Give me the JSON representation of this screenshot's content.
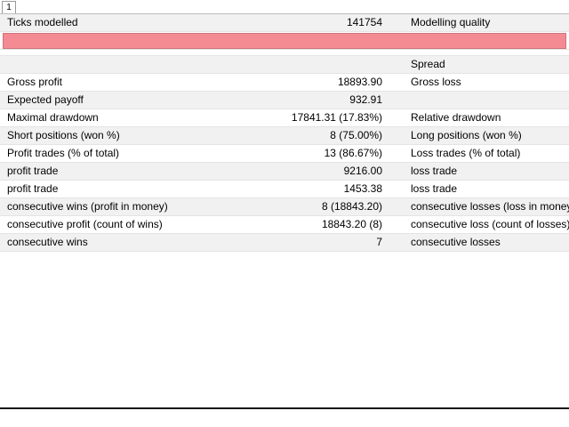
{
  "tab": {
    "label": "1"
  },
  "report": {
    "rows": [
      {
        "label1": "Ticks modelled",
        "value1": "141754",
        "label2": "Modelling quality"
      },
      {
        "label1": "",
        "value1": "",
        "label2": "Spread"
      },
      {
        "label1": "Gross profit",
        "value1": "18893.90",
        "label2": "Gross loss"
      },
      {
        "label1": "Expected payoff",
        "value1": "932.91",
        "label2": ""
      },
      {
        "label1": "Maximal drawdown",
        "value1": "17841.31 (17.83%)",
        "label2": "Relative drawdown"
      },
      {
        "label1": "Short positions (won %)",
        "value1": "8 (75.00%)",
        "label2": "Long positions (won %)"
      },
      {
        "label1": "Profit trades (% of total)",
        "value1": "13 (86.67%)",
        "label2": "Loss trades (% of total)"
      },
      {
        "label1": "profit trade",
        "value1": "9216.00",
        "label2": "loss trade"
      },
      {
        "label1": "profit trade",
        "value1": "1453.38",
        "label2": "loss trade"
      },
      {
        "label1": "consecutive wins (profit in money)",
        "value1": "8 (18843.20)",
        "label2": "consecutive losses (loss in money)"
      },
      {
        "label1": "consecutive profit (count of wins)",
        "value1": "18843.20 (8)",
        "label2": "consecutive loss (count of losses)"
      },
      {
        "label1": "consecutive wins",
        "value1": "7",
        "label2": "consecutive losses"
      }
    ],
    "colors": {
      "row_alt_background": "#f1f1f1",
      "quality_bar": "#f48b92",
      "quality_bar_border": "#ce747c"
    }
  }
}
